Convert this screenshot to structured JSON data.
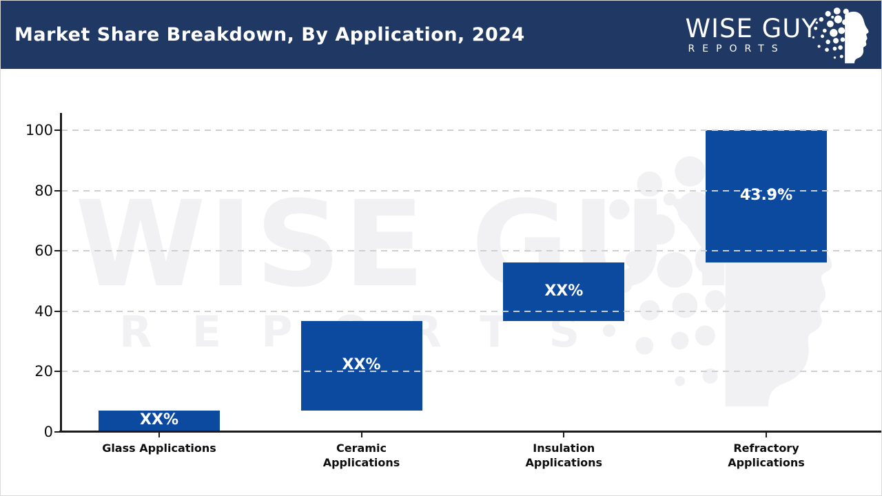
{
  "header": {
    "title": "Market Share Breakdown, By Application, 2024",
    "logo": {
      "line1": "WISE GUY",
      "line2": "REPORTS"
    }
  },
  "watermark": {
    "line1": "WISE GUY",
    "line2": "REPORTS"
  },
  "chart_data": {
    "type": "bar",
    "subtype": "floating-range-bars (waterfall style market share)",
    "title": "Market Share Breakdown, By Application, 2024",
    "categories": [
      "Glass Applications",
      "Ceramic\nApplications",
      "Insulation\nApplications",
      "Refractory\nApplications"
    ],
    "series": [
      {
        "name": "Market Share (%)",
        "ranges": [
          [
            0,
            7
          ],
          [
            7,
            36.7
          ],
          [
            36.7,
            56.1
          ],
          [
            56.1,
            100
          ]
        ],
        "segment_sizes": [
          7,
          29.7,
          19.4,
          43.9
        ],
        "labels": [
          "XX%",
          "XX%",
          "XX%",
          "43.9%"
        ]
      }
    ],
    "xlabel": "",
    "ylabel": "",
    "ylim": [
      0,
      100
    ],
    "yticks": [
      0,
      20,
      40,
      60,
      80,
      100
    ],
    "grid": "horizontal dashed gridlines drawn over bars",
    "legend": "none",
    "bar_color": "#0b4a9e",
    "bar_label_color": "#ffffff"
  },
  "colors": {
    "header_bg": "#1f3864",
    "bar": "#0b4a9e",
    "axis": "#1a1a1a",
    "gridline": "#cfcfcf",
    "watermark": "#f1f1f3",
    "text": "#0d0d0d"
  }
}
